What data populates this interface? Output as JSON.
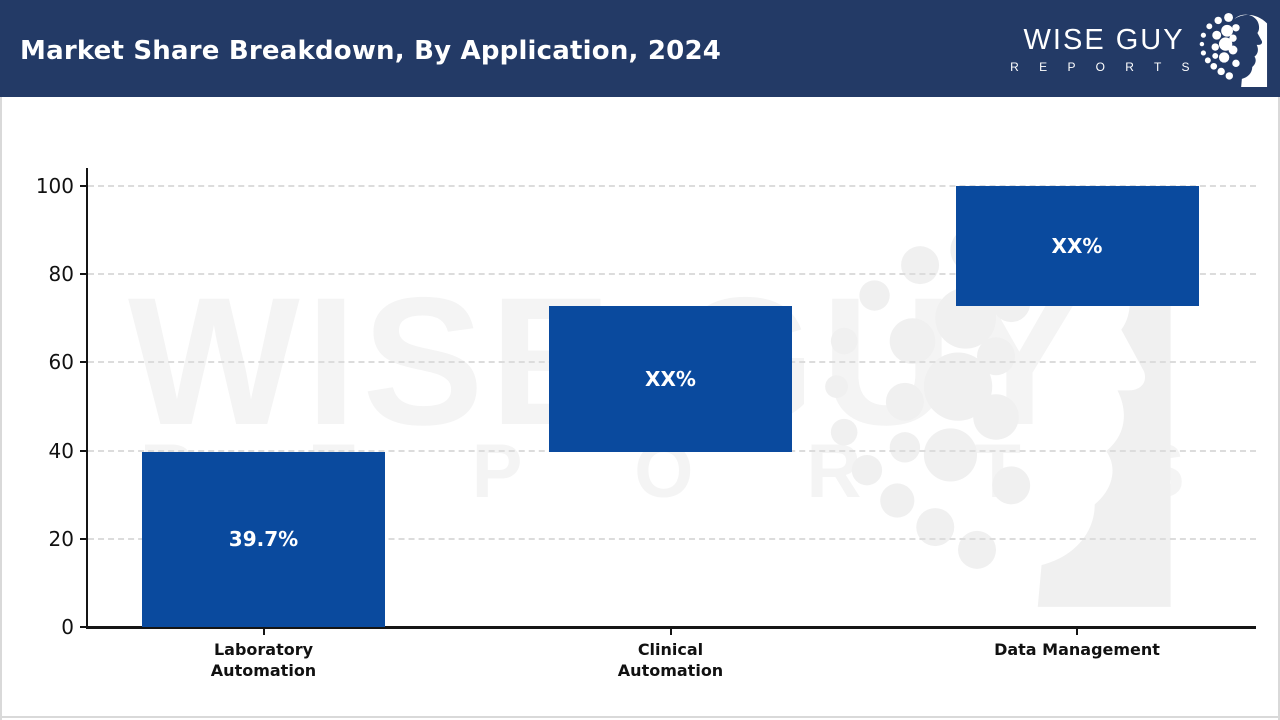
{
  "header": {
    "title": "Market Share Breakdown, By Application, 2024",
    "logo": {
      "wordmark": "WISE GUY",
      "sub": "R E P O R T S"
    }
  },
  "watermark": {
    "wordmark": "WISE GUY",
    "sub": "R E P O R T S"
  },
  "chart_data": {
    "type": "bar",
    "subtype": "stacked-waterfall",
    "title": "Market Share Breakdown, By Application, 2024",
    "categories": [
      [
        "Laboratory",
        "Automation"
      ],
      [
        "Clinical",
        "Automation"
      ],
      [
        "Data Management"
      ]
    ],
    "segments": [
      {
        "category": "Laboratory Automation",
        "start": 0,
        "end": 39.7,
        "label": "39.7%"
      },
      {
        "category": "Clinical Automation",
        "start": 39.7,
        "end": 72.8,
        "label": "XX%"
      },
      {
        "category": "Data Management",
        "start": 72.8,
        "end": 100,
        "label": "XX%"
      }
    ],
    "yticks": [
      0,
      20,
      40,
      60,
      80,
      100
    ],
    "ylim": [
      0,
      104
    ],
    "grid": "horizontal-dashed",
    "legend": "none",
    "bar_color": "#0a4a9e",
    "axis_color": "#151515",
    "grid_color": "#dcdcdc",
    "label_on_bar_color": "#ffffff"
  },
  "colors": {
    "header_bg": "#233a66",
    "body_bg": "#ffffff",
    "border": "#d9d9d9",
    "watermark": "#f4f4f4"
  }
}
